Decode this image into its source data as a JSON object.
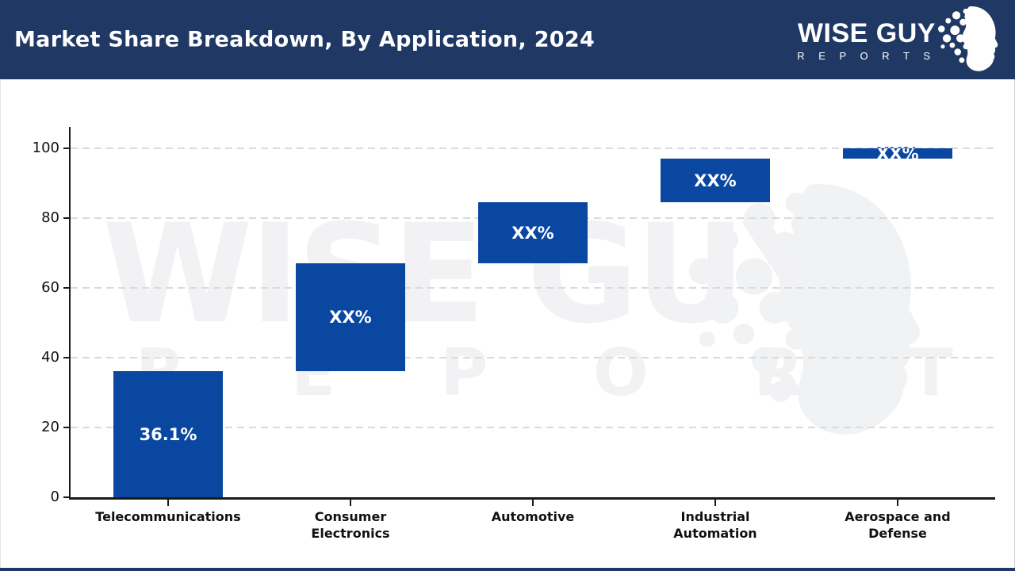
{
  "header": {
    "title": "Market Share Breakdown, By Application, 2024",
    "logo": {
      "line1": "WISE GUY",
      "line2": "R E P O R T S"
    }
  },
  "watermark": {
    "line1": "WISE GUY",
    "line2": "R E P O R T S"
  },
  "chart_data": {
    "type": "bar",
    "subtype": "waterfall",
    "title": "Market Share Breakdown, By Application, 2024",
    "categories": [
      "Telecommunications",
      "Consumer Electronics",
      "Automotive",
      "Industrial Automation",
      "Aerospace and Defense"
    ],
    "axis_labels": [
      "Telecommunications",
      "Consumer\nElectronics",
      "Automotive",
      "Industrial\nAutomation",
      "Aerospace and\nDefense"
    ],
    "segments": [
      {
        "category": "Telecommunications",
        "start": 0,
        "end": 36.1,
        "value": 36.1,
        "label": "36.1%"
      },
      {
        "category": "Consumer Electronics",
        "start": 36.1,
        "end": 67,
        "value": 30.9,
        "label": "XX%"
      },
      {
        "category": "Automotive",
        "start": 67,
        "end": 84.5,
        "value": 17.5,
        "label": "XX%"
      },
      {
        "category": "Industrial Automation",
        "start": 84.5,
        "end": 97,
        "value": 12.5,
        "label": "XX%"
      },
      {
        "category": "Aerospace and Defense",
        "start": 97,
        "end": 100,
        "value": 3.0,
        "label": "XX%"
      }
    ],
    "ylim": [
      0,
      100
    ],
    "yticks": [
      0,
      20,
      40,
      60,
      80,
      100
    ],
    "grid": "horizontal-dashed",
    "legend": "none",
    "bar_color": "#0a47a1",
    "bar_label_color": "#ffffff",
    "axis_color": "#1a1a1a",
    "grid_color": "#dadada",
    "header_color": "#203864"
  }
}
